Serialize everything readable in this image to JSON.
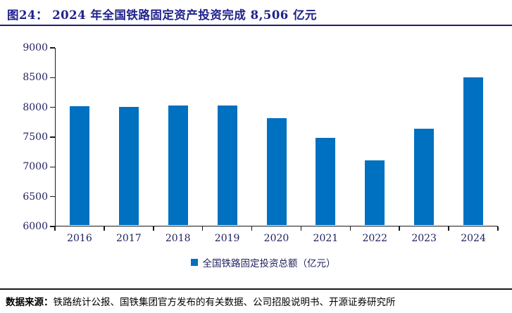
{
  "figure": {
    "title": "图24：  2024 年全国铁路固定资产投资完成 8,506 亿元",
    "source_prefix": "数据来源：",
    "source_text": "铁路统计公报、国铁集团官方发布的有关数据、公司招股说明书、开源证券研究所"
  },
  "legend": {
    "label": "全国铁路固定投资总额（亿元）"
  },
  "colors": {
    "bar": "#0070C0",
    "title": "#1F218B",
    "tick_label": "#1F1F5E",
    "axis_line": "#1a1a1a",
    "title_divider": "#1F1F6E"
  },
  "chart_data": {
    "type": "bar",
    "categories": [
      "2016",
      "2017",
      "2018",
      "2019",
      "2020",
      "2021",
      "2022",
      "2023",
      "2024"
    ],
    "values": [
      8015,
      8010,
      8028,
      8029,
      7819,
      7489,
      7109,
      7645,
      8506
    ],
    "series_name": "全国铁路固定投资总额（亿元）",
    "title": "2024 年全国铁路固定资产投资完成 8,506 亿元",
    "xlabel": "",
    "ylabel": "",
    "ylim": [
      6000,
      9000
    ],
    "ytick_step": 500,
    "yticks": [
      6000,
      6500,
      7000,
      7500,
      8000,
      8500,
      9000
    ],
    "grid": false,
    "legend_position": "bottom"
  }
}
